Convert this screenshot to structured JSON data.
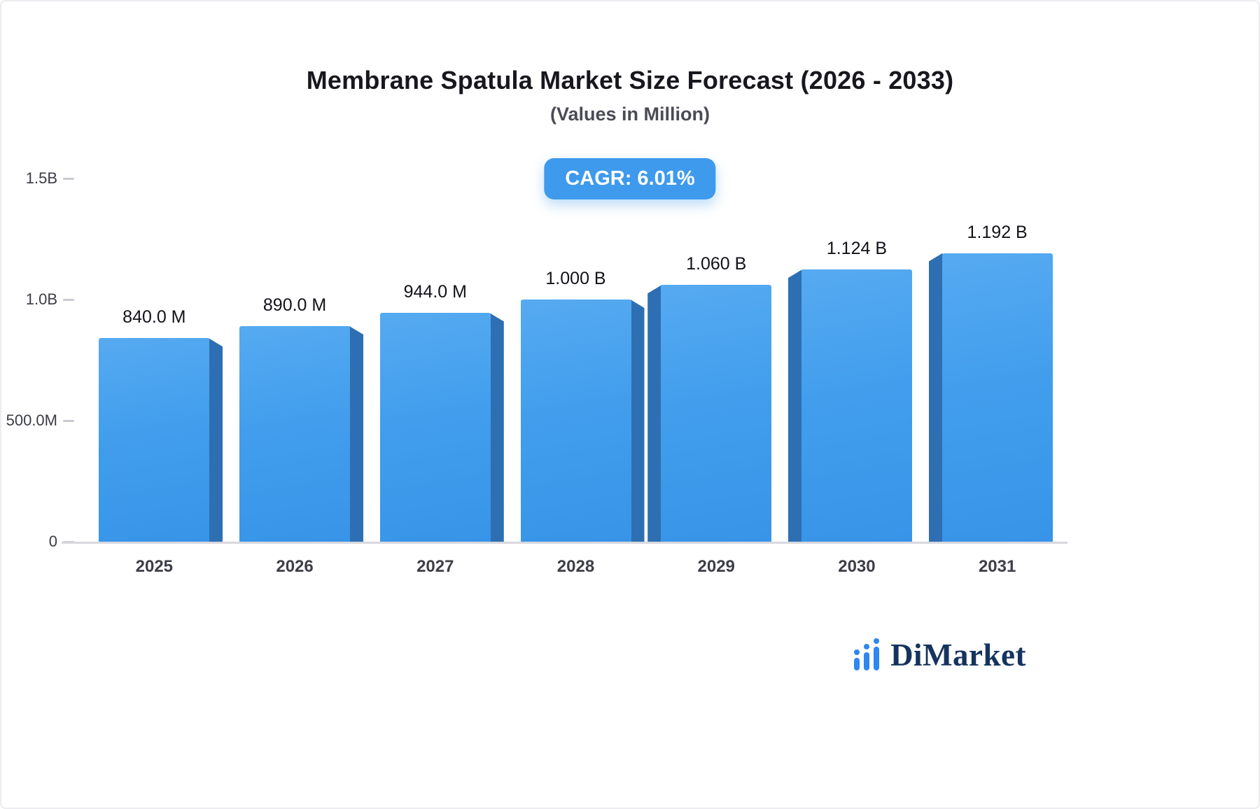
{
  "chart": {
    "title": "Membrane Spatula Market Size Forecast (2026 - 2033)",
    "subtitle": "(Values in Million)",
    "cagr_label": "CAGR: 6.01%"
  },
  "chart_data": {
    "type": "bar",
    "categories": [
      "2025",
      "2026",
      "2027",
      "2028",
      "2029",
      "2030",
      "2031"
    ],
    "values": [
      840,
      890,
      944,
      1000,
      1060,
      1124,
      1192
    ],
    "values_unit": "Million USD",
    "value_labels": [
      "840.0 M",
      "890.0 M",
      "944.0 M",
      "1.000 B",
      "1.060 B",
      "1.124 B",
      "1.192 B"
    ],
    "title": "Membrane Spatula Market Size Forecast (2026 - 2033)",
    "xlabel": "",
    "ylabel": "",
    "ylim": [
      0,
      1500
    ],
    "yticks": [
      {
        "value": 1500,
        "label": "1.5B"
      },
      {
        "value": 1000,
        "label": "1.0B"
      },
      {
        "value": 500,
        "label": "500.0M"
      },
      {
        "value": 0,
        "label": "0"
      }
    ],
    "grid": false,
    "legend_position": "none",
    "bar_style": "3d-extruded"
  },
  "branding": {
    "logo_text": "DiMarket",
    "logo_icon": "bar-chart-icon"
  },
  "colors": {
    "bar_main": "#3D9AEB",
    "bar_main_light": "#56AAF1",
    "bar_side": "#2D6FB2",
    "badge_bg": "#3E9AEC",
    "badge_text": "#FFFFFF",
    "title_text": "#17171D",
    "subtitle_text": "#4B4B57",
    "axis_text": "#3C3C46",
    "baseline": "#D7D7DE",
    "logo_navy": "#15335F",
    "logo_icon_blue": "#2E87F0"
  }
}
